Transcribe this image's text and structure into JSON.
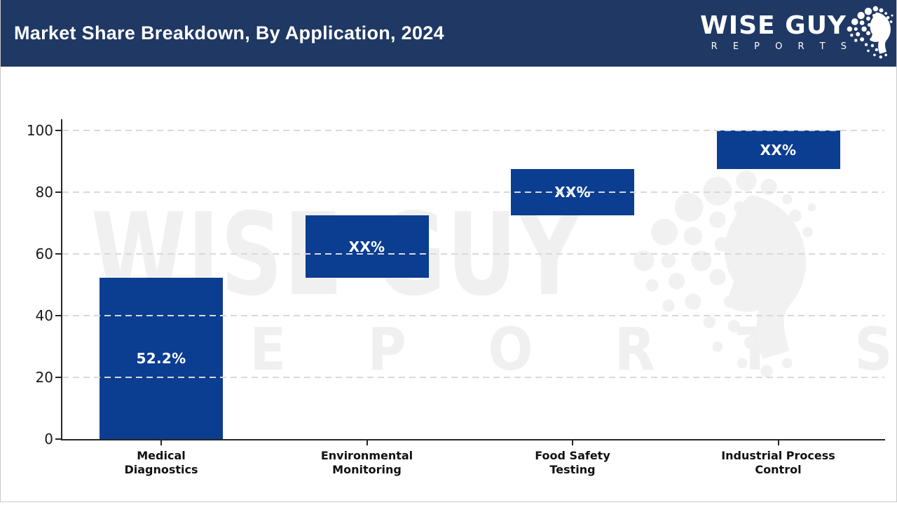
{
  "header": {
    "title": "Market Share Breakdown, By Application, 2024",
    "logo": {
      "wordmark": "WISE GUY",
      "subtext": "R E P O R T S"
    }
  },
  "watermark": {
    "wordmark": "WISE GUY",
    "subtext": "R E P O R T S"
  },
  "chart_data": {
    "type": "bar",
    "variant": "waterfall",
    "title": "Market Share Breakdown, By Application, 2024",
    "unit": "%",
    "categories": [
      {
        "line1": "Medical",
        "line2": "Diagnostics"
      },
      {
        "line1": "Environmental",
        "line2": "Monitoring"
      },
      {
        "line1": "Food Safety",
        "line2": "Testing"
      },
      {
        "line1": "Industrial Process",
        "line2": "Control"
      }
    ],
    "segments": [
      {
        "label": "52.2%",
        "start": 0,
        "end": 52.2
      },
      {
        "label": "XX%",
        "start": 52.2,
        "end": 72.5
      },
      {
        "label": "XX%",
        "start": 72.5,
        "end": 87.5
      },
      {
        "label": "XX%",
        "start": 87.5,
        "end": 100
      }
    ],
    "y_axis": {
      "ticks": [
        0,
        20,
        40,
        60,
        80,
        100
      ],
      "min": 0,
      "max": 103.6
    },
    "grid": {
      "visible": true,
      "style": "dashed",
      "drawn_over_bars": true
    },
    "legend": "none",
    "xlabel": "",
    "ylabel": "",
    "bar_color": "#0b3d91"
  },
  "colors": {
    "header_bg": "#1f3864",
    "bar": "#0b3d91",
    "grid": "#d9d9d9",
    "axis": "#262626",
    "text": "#1a1a1a",
    "watermark": "#f0f0f0"
  }
}
